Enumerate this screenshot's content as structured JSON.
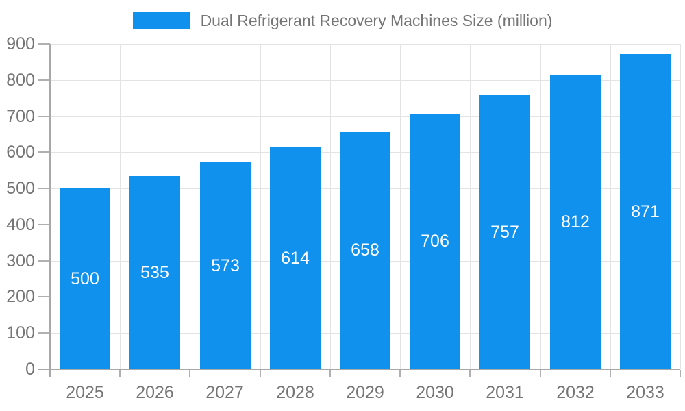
{
  "chart_data": {
    "type": "bar",
    "title": "",
    "legend_position": "top",
    "categories": [
      "2025",
      "2026",
      "2027",
      "2028",
      "2029",
      "2030",
      "2031",
      "2032",
      "2033"
    ],
    "series": [
      {
        "name": "Dual Refrigerant Recovery Machines Size (million)",
        "values": [
          500,
          535,
          573,
          614,
          658,
          706,
          757,
          812,
          871
        ]
      }
    ],
    "bar_value_labels": "inside-center",
    "xlabel": "",
    "ylabel": "",
    "ylim": [
      0,
      900
    ],
    "yticks": [
      0,
      100,
      200,
      300,
      400,
      500,
      600,
      700,
      800,
      900
    ],
    "grid": true,
    "colors": {
      "bar": "#1191EE",
      "axis": "#a8a8a8",
      "tick": "#b0b0b0",
      "grid": "#e3e3e3",
      "label_text": "#757575",
      "bar_label_text": "#ffffff",
      "background": "#ffffff"
    }
  }
}
